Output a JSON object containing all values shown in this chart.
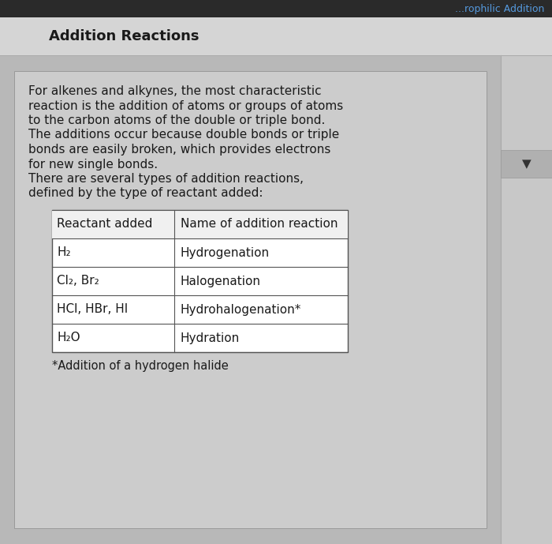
{
  "title": "Addition Reactions",
  "title_fontsize": 13,
  "body_text_lines": [
    "For alkenes and alkynes, the most characteristic",
    "reaction is the addition of atoms or groups of atoms",
    "to the carbon atoms of the double or triple bond.",
    "The additions occur because double bonds or triple",
    "bonds are easily broken, which provides electrons",
    "for new single bonds.",
    "There are several types of addition reactions,",
    "defined by the type of reactant added:"
  ],
  "body_fontsize": 11,
  "table_headers": [
    "Reactant added",
    "Name of addition reaction"
  ],
  "table_col1": [
    "H₂",
    "Cl₂, Br₂",
    "HCl, HBr, HI",
    "H₂O"
  ],
  "table_col2": [
    "Hydrogenation",
    "Halogenation",
    "Hydrohalogenation*",
    "Hydration"
  ],
  "footnote": "*Addition of a hydrogen halide",
  "footnote_fontsize": 10.5,
  "table_fontsize": 11,
  "header_fontsize": 11,
  "bg_color": "#b8b8b8",
  "card_color": "#cccccc",
  "text_color": "#1a1a1a",
  "table_border_color": "#555555",
  "top_bar_color": "#2a2a2a",
  "top_text": "...rophilic Addition",
  "top_text_color": "#5599dd",
  "arrow_color": "#333333",
  "right_panel_color": "#bbbbbb",
  "title_bg_color": "#d5d5d5",
  "card_bg_color": "#cccccc",
  "scroll_panel_color": "#c8c8c8"
}
